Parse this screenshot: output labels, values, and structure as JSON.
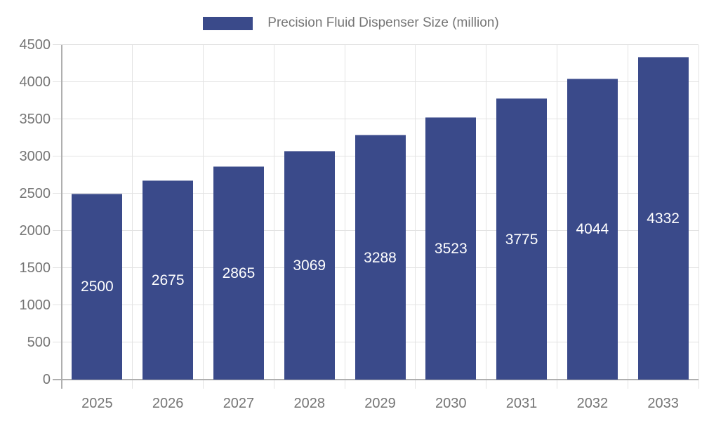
{
  "page": {
    "background": "#FFFFFF"
  },
  "legend": {
    "label": "Precision Fluid Dispenser Size (million)"
  },
  "chart_data": {
    "type": "bar",
    "title": "Precision Fluid Dispenser Size (million)",
    "categories": [
      "2025",
      "2026",
      "2027",
      "2028",
      "2029",
      "2030",
      "2031",
      "2032",
      "2033"
    ],
    "series": [
      {
        "name": "Precision Fluid Dispenser Size (million)",
        "values": [
          2500,
          2675,
          2865,
          3069,
          3288,
          3523,
          3775,
          4044,
          4332
        ]
      }
    ],
    "bar_labels": [
      "2500",
      "2675",
      "2865",
      "3069",
      "3288",
      "3523",
      "3775",
      "4044",
      "4332"
    ],
    "xlabel": "",
    "ylabel": "",
    "ylim": [
      0,
      4500
    ],
    "ytick_step": 500,
    "yticks": [
      0,
      500,
      1000,
      1500,
      2000,
      2500,
      3000,
      3500,
      4000,
      4500
    ],
    "grid": true,
    "legend_position": "top-center",
    "bar_label_position": "inside-center",
    "colors": {
      "bar": "#3A4A8A",
      "bar_value_text": "#FFFFFF",
      "gridline": "#E3E3E3",
      "axis_line": "#AFAFAF",
      "tick_text": "#757575",
      "legend_text": "#757575",
      "background": "#FFFFFF"
    }
  }
}
